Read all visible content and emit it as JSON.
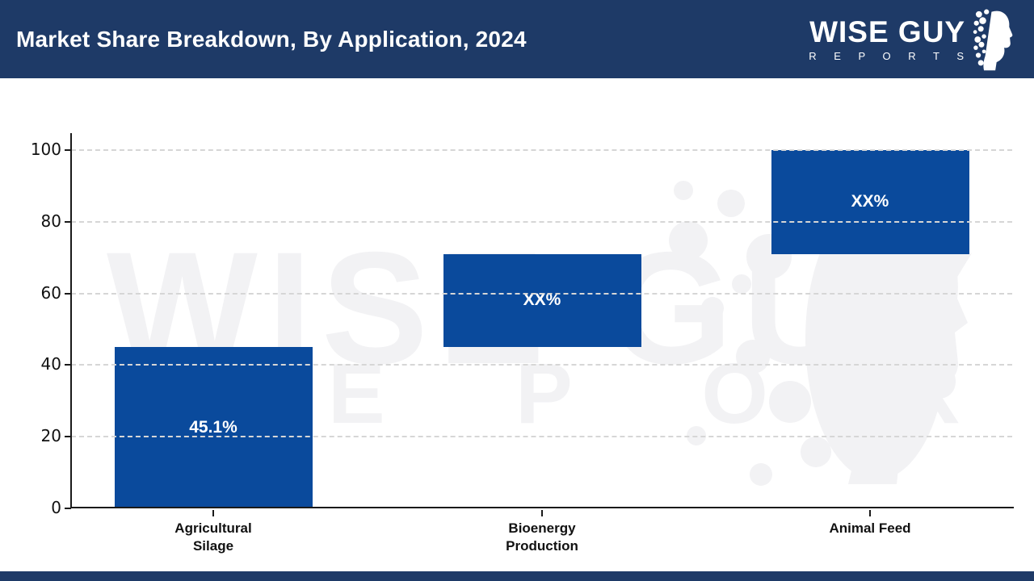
{
  "header": {
    "title": "Market Share Breakdown, By Application, 2024",
    "logo": {
      "line1": "WISE GUY",
      "line2": "R E P O R T S"
    }
  },
  "watermark": {
    "line1": "WISE GUY",
    "line2": "R E P O R T S"
  },
  "chart_data": {
    "type": "bar",
    "subtype": "waterfall-market-share",
    "title": "Market Share Breakdown, By Application, 2024",
    "categories": [
      "Agricultural\nSilage",
      "Bioenergy\nProduction",
      "Animal Feed"
    ],
    "segments": [
      {
        "category": "Agricultural\nSilage",
        "start": 0,
        "end": 45.1,
        "bar_label": "45.1%"
      },
      {
        "category": "Bioenergy\nProduction",
        "start": 45.1,
        "end": 71,
        "bar_label": "XX%"
      },
      {
        "category": "Animal Feed",
        "start": 71,
        "end": 100,
        "bar_label": "XX%"
      }
    ],
    "ylim": [
      0,
      100
    ],
    "yticks": [
      0,
      20,
      40,
      60,
      80,
      100
    ],
    "grid": "horizontal-dashed",
    "legend": "none",
    "bar_color": "#0a4a9c",
    "bar_label_color": "#ffffff"
  },
  "colors": {
    "header_bg": "#1e3a67",
    "footer_bg": "#1e3a67",
    "bar": "#0a4a9c",
    "gridline": "#d6d6d6",
    "axis": "#1a1a1a",
    "watermark": "#f2f2f4",
    "title_text": "#ffffff"
  }
}
